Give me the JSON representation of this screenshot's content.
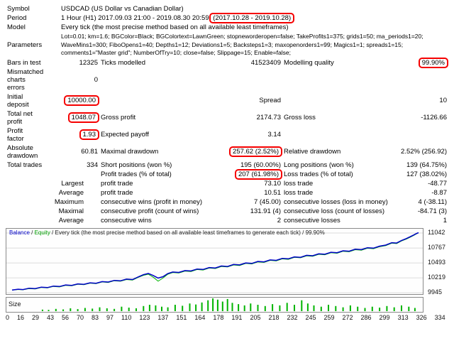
{
  "report": {
    "symbol": {
      "label": "Symbol",
      "value": "USDCAD (US Dollar vs Canadian Dollar)"
    },
    "period": {
      "label": "Period",
      "main": "1 Hour (H1) 2017.09.03 21:00 - 2019.08.30 20:59",
      "range": "(2017.10.28 - 2019.10.28)"
    },
    "model": {
      "label": "Model",
      "value": "Every tick (the most precise method based on all available least timeframes)"
    },
    "params": {
      "label": "Parameters",
      "value": "Lot=0.01; km=1.6; BGColor=Black; BGColortext=LawnGreen; stopneworderopen=false; TakeProfits1=375; grids1=50; ma_periods1=20;\nWaveMins1=300; FiboOpens1=40; Depths1=12; Deviations1=5; Backsteps1=3; maxopenorders1=99; Magics1=1; spreads1=15;\ncomments1=\"Master grid\"; NumberOfTry=10; close=false; Slippage=15; Enable=false;"
    },
    "bars": {
      "label": "Bars in test",
      "value": "12325",
      "label2": "Ticks modelled",
      "value2": "41523409",
      "label3": "Modelling quality",
      "value3": "99.90%"
    },
    "mismatch": {
      "label": "Mismatched\ncharts\nerrors",
      "value": "0"
    },
    "deposit": {
      "label": "Initial\ndeposit",
      "value": "10000.00",
      "label2": "Spread",
      "value2": "10"
    },
    "netprofit": {
      "label": "Total net\nprofit",
      "value": "1048.07",
      "label2": "Gross profit",
      "value2": "2174.73",
      "label3": "Gross loss",
      "value3": "-1126.66"
    },
    "pfactor": {
      "label": "Profit\nfactor",
      "value": "1.93",
      "label2": "Expected payoff",
      "value2": "3.14"
    },
    "drawdown": {
      "label": "Absolute\ndrawdown",
      "value": "60.81",
      "label2": "Maximal drawdown",
      "value2": "257.62 (2.52%)",
      "label3": "Relative drawdown",
      "value3": "2.52% (256.92)"
    },
    "trades": {
      "label": "Total trades",
      "value": "334",
      "label2": "Short positions (won %)",
      "value2": "195 (60.00%)",
      "label3": "Long positions (won %)",
      "value3": "139 (64.75%)"
    },
    "ptrades": {
      "label2": "Profit trades (% of total)",
      "value2": "207 (61.98%)",
      "label3": "Loss trades (% of total)",
      "value3": "127 (38.02%)"
    },
    "largest": {
      "label": "Largest",
      "label2": "profit trade",
      "value2": "73.10",
      "label3": "loss trade",
      "value3": "-48.77"
    },
    "average": {
      "label": "Average",
      "label2": "profit trade",
      "value2": "10.51",
      "label3": "loss trade",
      "value3": "-8.87"
    },
    "maximum": {
      "label": "Maximum",
      "label2": "consecutive wins (profit in money)",
      "value2": "7 (45.00)",
      "label3": "consecutive losses (loss in money)",
      "value3": "4 (-38.11)"
    },
    "maximal": {
      "label": "Maximal",
      "label2": "consecutive profit (count of wins)",
      "value2": "131.91 (4)",
      "label3": "consecutive loss (count of losses)",
      "value3": "-84.71 (3)"
    },
    "avgcons": {
      "label": "Average",
      "label2": "consecutive wins",
      "value2": "2",
      "label3": "consecutive losses",
      "value3": "1"
    }
  },
  "chart_data": {
    "type": "line",
    "legend": {
      "balance": "Balance",
      "equity": "Equity",
      "sep": " / ",
      "model": "Every tick (the most precise method based on all available least timeframes to generate each tick)",
      "quality": "99.90%"
    },
    "size_label": "Size",
    "y_ticks": [
      11042,
      10767,
      10493,
      10219,
      9945
    ],
    "x_ticks": [
      0,
      16,
      29,
      43,
      56,
      70,
      83,
      97,
      110,
      123,
      137,
      151,
      164,
      178,
      191,
      205,
      218,
      232,
      245,
      259,
      272,
      286,
      299,
      313,
      326,
      334
    ],
    "xlim": [
      0,
      334
    ],
    "ylim": [
      9920,
      11120
    ],
    "colors": {
      "balance": "#0000c8",
      "equity": "#00b400",
      "size": "#00b400",
      "grid": "#dcdcdc",
      "border": "#8a8a8a"
    },
    "series": [
      {
        "name": "Balance",
        "color": "#0000c8",
        "width": 1.5,
        "points": [
          [
            0,
            9996
          ],
          [
            5,
            10010
          ],
          [
            9,
            10004
          ],
          [
            14,
            10028
          ],
          [
            19,
            10022
          ],
          [
            24,
            10048
          ],
          [
            29,
            10040
          ],
          [
            34,
            10068
          ],
          [
            39,
            10060
          ],
          [
            44,
            10088
          ],
          [
            49,
            10080
          ],
          [
            54,
            10108
          ],
          [
            59,
            10100
          ],
          [
            64,
            10128
          ],
          [
            69,
            10120
          ],
          [
            74,
            10150
          ],
          [
            79,
            10142
          ],
          [
            84,
            10172
          ],
          [
            89,
            10164
          ],
          [
            94,
            10195
          ],
          [
            99,
            10188
          ],
          [
            104,
            10240
          ],
          [
            108,
            10278
          ],
          [
            112,
            10300
          ],
          [
            116,
            10262
          ],
          [
            120,
            10215
          ],
          [
            124,
            10240
          ],
          [
            128,
            10298
          ],
          [
            132,
            10325
          ],
          [
            137,
            10318
          ],
          [
            142,
            10352
          ],
          [
            147,
            10345
          ],
          [
            152,
            10380
          ],
          [
            157,
            10372
          ],
          [
            162,
            10408
          ],
          [
            167,
            10400
          ],
          [
            172,
            10436
          ],
          [
            177,
            10428
          ],
          [
            182,
            10464
          ],
          [
            187,
            10456
          ],
          [
            192,
            10492
          ],
          [
            197,
            10484
          ],
          [
            202,
            10520
          ],
          [
            207,
            10512
          ],
          [
            212,
            10548
          ],
          [
            217,
            10540
          ],
          [
            222,
            10576
          ],
          [
            227,
            10568
          ],
          [
            232,
            10604
          ],
          [
            237,
            10596
          ],
          [
            242,
            10632
          ],
          [
            247,
            10624
          ],
          [
            252,
            10660
          ],
          [
            257,
            10652
          ],
          [
            262,
            10688
          ],
          [
            267,
            10680
          ],
          [
            272,
            10716
          ],
          [
            277,
            10708
          ],
          [
            282,
            10744
          ],
          [
            287,
            10736
          ],
          [
            292,
            10772
          ],
          [
            297,
            10764
          ],
          [
            302,
            10800
          ],
          [
            307,
            10820
          ],
          [
            312,
            10865
          ],
          [
            316,
            10858
          ],
          [
            320,
            10905
          ],
          [
            324,
            10940
          ],
          [
            327,
            10972
          ],
          [
            330,
            11005
          ],
          [
            332,
            11030
          ],
          [
            334,
            11048
          ]
        ]
      },
      {
        "name": "Equity",
        "color": "#00b400",
        "width": 1,
        "points": [
          [
            0,
            9993
          ],
          [
            5,
            10005
          ],
          [
            9,
            9999
          ],
          [
            14,
            10022
          ],
          [
            19,
            10015
          ],
          [
            24,
            10042
          ],
          [
            29,
            10033
          ],
          [
            34,
            10061
          ],
          [
            39,
            10052
          ],
          [
            44,
            10081
          ],
          [
            49,
            10072
          ],
          [
            54,
            10101
          ],
          [
            59,
            10092
          ],
          [
            64,
            10121
          ],
          [
            69,
            10112
          ],
          [
            74,
            10143
          ],
          [
            79,
            10134
          ],
          [
            84,
            10165
          ],
          [
            89,
            10156
          ],
          [
            94,
            10188
          ],
          [
            99,
            10178
          ],
          [
            104,
            10230
          ],
          [
            108,
            10265
          ],
          [
            112,
            10285
          ],
          [
            116,
            10230
          ],
          [
            120,
            10158
          ],
          [
            124,
            10215
          ],
          [
            128,
            10285
          ],
          [
            132,
            10316
          ],
          [
            137,
            10308
          ],
          [
            142,
            10343
          ],
          [
            147,
            10335
          ],
          [
            152,
            10371
          ],
          [
            157,
            10362
          ],
          [
            162,
            10399
          ],
          [
            167,
            10390
          ],
          [
            172,
            10427
          ],
          [
            177,
            10418
          ],
          [
            182,
            10455
          ],
          [
            187,
            10446
          ],
          [
            192,
            10483
          ],
          [
            197,
            10474
          ],
          [
            202,
            10511
          ],
          [
            207,
            10502
          ],
          [
            212,
            10539
          ],
          [
            217,
            10530
          ],
          [
            222,
            10567
          ],
          [
            227,
            10558
          ],
          [
            232,
            10595
          ],
          [
            237,
            10586
          ],
          [
            242,
            10623
          ],
          [
            247,
            10614
          ],
          [
            252,
            10651
          ],
          [
            257,
            10642
          ],
          [
            262,
            10679
          ],
          [
            267,
            10670
          ],
          [
            272,
            10707
          ],
          [
            277,
            10698
          ],
          [
            282,
            10735
          ],
          [
            287,
            10726
          ],
          [
            292,
            10763
          ],
          [
            297,
            10754
          ],
          [
            302,
            10791
          ],
          [
            307,
            10810
          ],
          [
            312,
            10855
          ],
          [
            316,
            10848
          ],
          [
            320,
            10896
          ],
          [
            324,
            10930
          ],
          [
            327,
            10963
          ],
          [
            330,
            10997
          ],
          [
            332,
            11023
          ],
          [
            334,
            11046
          ]
        ]
      }
    ],
    "size_histogram": [
      [
        25,
        0.12
      ],
      [
        30,
        0.1
      ],
      [
        36,
        0.18
      ],
      [
        42,
        0.14
      ],
      [
        48,
        0.22
      ],
      [
        54,
        0.16
      ],
      [
        60,
        0.25
      ],
      [
        66,
        0.2
      ],
      [
        72,
        0.3
      ],
      [
        78,
        0.22
      ],
      [
        84,
        0.18
      ],
      [
        90,
        0.35
      ],
      [
        96,
        0.28
      ],
      [
        102,
        0.22
      ],
      [
        108,
        0.4
      ],
      [
        113,
        0.5
      ],
      [
        118,
        0.45
      ],
      [
        123,
        0.35
      ],
      [
        128,
        0.3
      ],
      [
        134,
        0.5
      ],
      [
        140,
        0.42
      ],
      [
        146,
        0.6
      ],
      [
        151,
        0.52
      ],
      [
        156,
        0.68
      ],
      [
        161,
        0.85
      ],
      [
        165,
        1
      ],
      [
        169,
        0.9
      ],
      [
        173,
        0.75
      ],
      [
        177,
        0.95
      ],
      [
        181,
        0.65
      ],
      [
        186,
        0.55
      ],
      [
        191,
        0.45
      ],
      [
        196,
        0.6
      ],
      [
        202,
        0.5
      ],
      [
        208,
        0.4
      ],
      [
        214,
        0.55
      ],
      [
        220,
        0.45
      ],
      [
        226,
        0.65
      ],
      [
        232,
        0.5
      ],
      [
        238,
        0.85
      ],
      [
        243,
        0.6
      ],
      [
        248,
        0.45
      ],
      [
        254,
        0.35
      ],
      [
        260,
        0.5
      ],
      [
        266,
        0.4
      ],
      [
        272,
        0.3
      ],
      [
        278,
        0.45
      ],
      [
        284,
        0.35
      ],
      [
        290,
        0.25
      ],
      [
        296,
        0.35
      ],
      [
        302,
        0.28
      ],
      [
        308,
        0.4
      ],
      [
        314,
        0.3
      ],
      [
        320,
        0.45
      ],
      [
        326,
        0.35
      ],
      [
        331,
        0.25
      ]
    ]
  }
}
